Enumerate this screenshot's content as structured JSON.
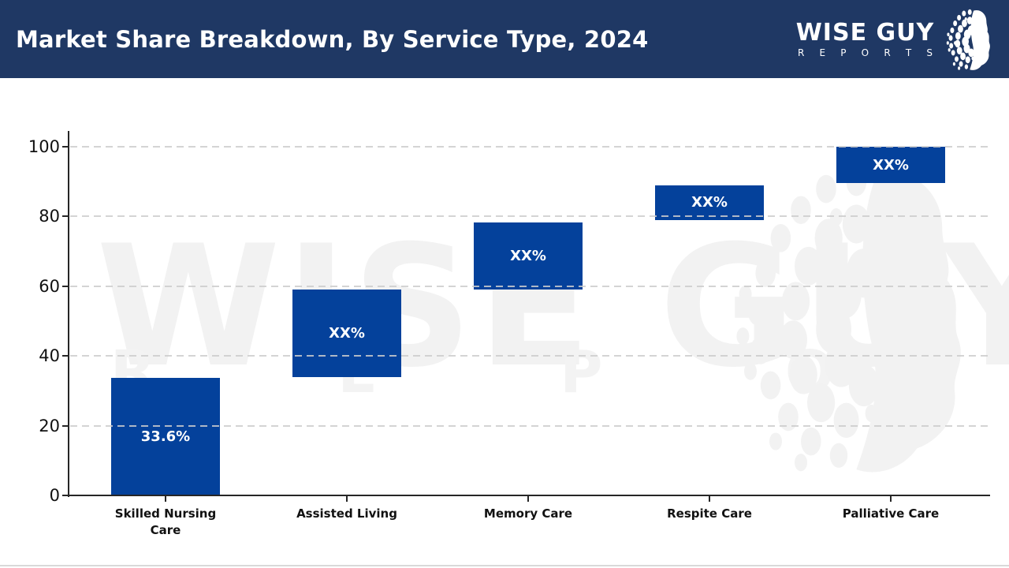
{
  "header": {
    "title": "Market Share Breakdown, By Service Type, 2024",
    "logo": {
      "line1": "WISE GUY",
      "line2": "REPORTS"
    }
  },
  "watermark": {
    "line1": "WISE GUY",
    "line2": "REPORTS"
  },
  "chart_data": {
    "type": "bar",
    "subtype": "waterfall",
    "title": "Market Share Breakdown, By Service Type, 2024",
    "categories": [
      "Skilled Nursing Care",
      "Assisted Living",
      "Memory Care",
      "Respite Care",
      "Palliative Care"
    ],
    "segments": [
      {
        "category": "Skilled Nursing Care",
        "start": 0,
        "end": 33.6,
        "label": "33.6%"
      },
      {
        "category": "Assisted Living",
        "start": 34,
        "end": 59,
        "label": "XX%"
      },
      {
        "category": "Memory Care",
        "start": 59,
        "end": 78.3,
        "label": "XX%"
      },
      {
        "category": "Respite Care",
        "start": 79,
        "end": 89,
        "label": "XX%"
      },
      {
        "category": "Palliative Care",
        "start": 89.5,
        "end": 100,
        "label": "XX%"
      }
    ],
    "xlabel": "",
    "ylabel": "",
    "ylim": [
      0,
      100
    ],
    "yticks": [
      0,
      20,
      40,
      60,
      80,
      100
    ],
    "grid": "dashed-horizontal, drawn over bars",
    "legend": "none",
    "bar_color": "#04419b",
    "bar_label_color": "#ffffff",
    "axis_color": "#262626",
    "header_bg": "#1f3864",
    "watermark_color": "#f2f2f2"
  }
}
